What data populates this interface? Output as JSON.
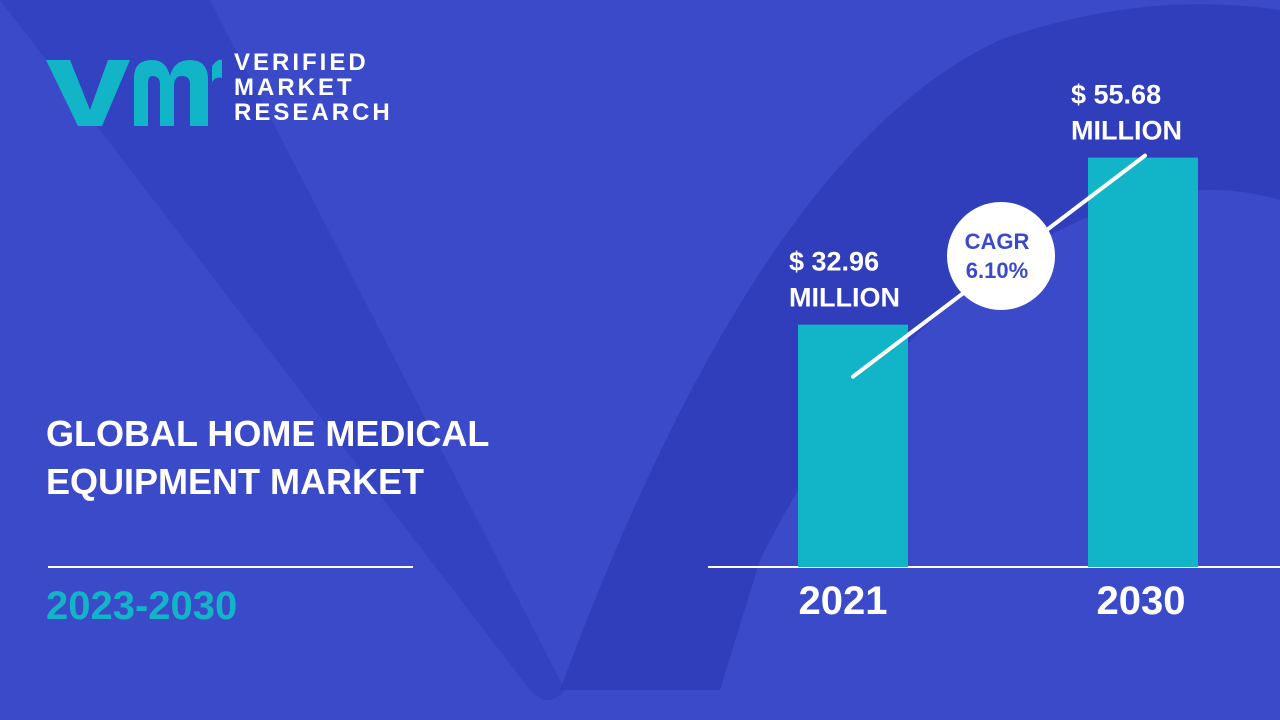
{
  "brand": {
    "lines": [
      "VERIFIED",
      "MARKET",
      "RESEARCH"
    ],
    "colors": {
      "teal": "#12b5c8",
      "background": "#3b4ac9",
      "text": "#ffffff",
      "cagr_text": "#3b4ac9"
    }
  },
  "report": {
    "title_lines": [
      "GLOBAL HOME MEDICAL",
      "EQUIPMENT MARKET"
    ],
    "period": "2023-2030"
  },
  "chart_data": {
    "type": "bar",
    "categories": [
      "2021",
      "2030"
    ],
    "values": [
      32.96,
      55.68
    ],
    "value_labels": [
      [
        "$ 32.96",
        "MILLION"
      ],
      [
        "$ 55.68",
        "MILLION"
      ]
    ],
    "cagr_label": [
      "CAGR",
      "6.10%"
    ],
    "ylim": [
      0,
      68
    ],
    "grid": false,
    "bar_color": "#12b5c8",
    "title": "",
    "xlabel": "",
    "ylabel": ""
  }
}
